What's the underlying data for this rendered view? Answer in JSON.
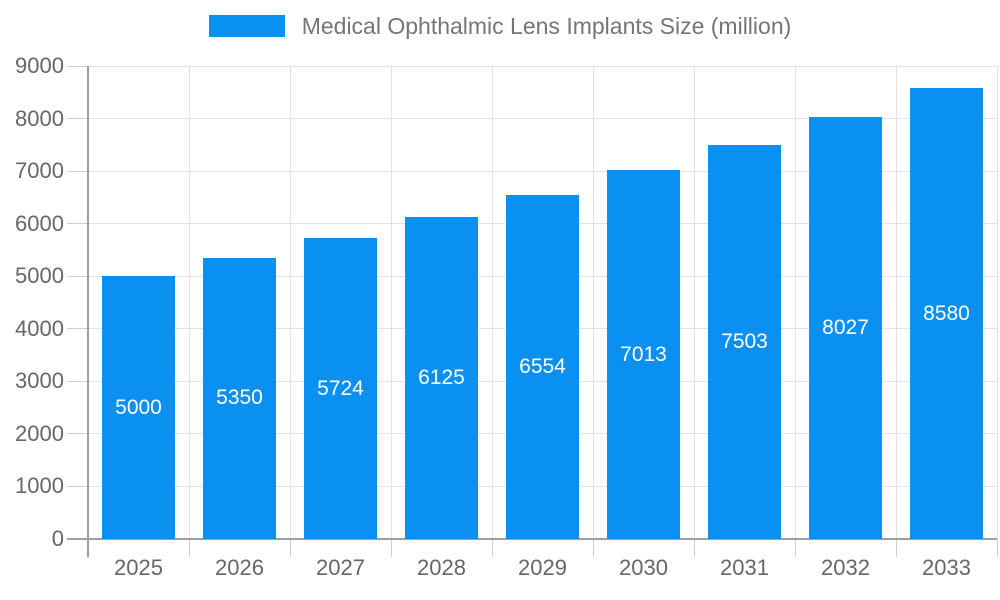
{
  "chart_data": {
    "type": "bar",
    "title": "Medical Ophthalmic Lens Implants Size (million)",
    "categories": [
      "2025",
      "2026",
      "2027",
      "2028",
      "2029",
      "2030",
      "2031",
      "2032",
      "2033"
    ],
    "values": [
      5000,
      5350,
      5724,
      6125,
      6554,
      7013,
      7503,
      8027,
      8580
    ],
    "series_name": "Medical Ophthalmic Lens Implants Size (million)",
    "xlabel": "",
    "ylabel": "",
    "ylim": [
      0,
      9000
    ],
    "y_tick_step": 1000,
    "y_tick_labels": [
      "0",
      "1000",
      "2000",
      "3000",
      "4000",
      "5000",
      "6000",
      "7000",
      "8000",
      "9000"
    ],
    "grid": true,
    "legend_position": "top-center",
    "value_label_position": "inside-middle"
  },
  "colors": {
    "bar": "#0A90F0",
    "grid": "#E2E2E2",
    "axis": "#9E9E9E",
    "tick": "#CFCFCF",
    "axis_text": "#666666",
    "legend_text": "#757575",
    "value_label_text": "#FFFFFF",
    "background": "#FFFFFF"
  }
}
